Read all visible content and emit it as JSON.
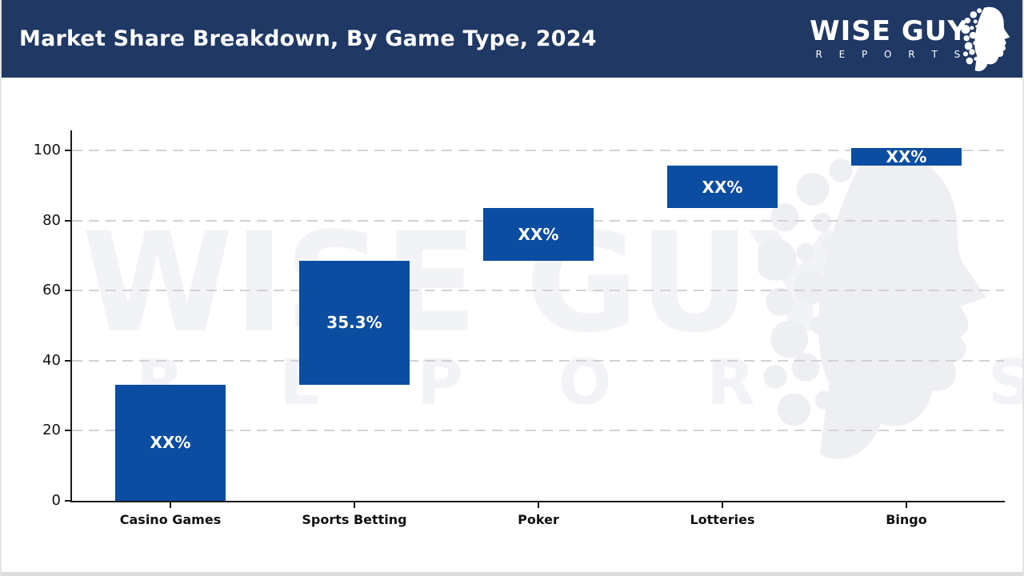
{
  "header": {
    "title": "Market Share Breakdown, By Game Type, 2024",
    "logo": {
      "line1": "WISE GUY",
      "line2": "R E P O R T S"
    }
  },
  "watermark": {
    "line1": "WISE GUY",
    "line2": "R E P O R T S"
  },
  "colors": {
    "header_bg": "#1f3864",
    "bar": "#0b4da1",
    "bar_label": "#ffffff",
    "grid": "#d2d2d2",
    "axis": "#1a1a1a",
    "tick_label": "#111111",
    "watermark": "#f2f3f6",
    "watermark_head": "#edeff3"
  },
  "chart_data": {
    "type": "bar",
    "subtype": "waterfall",
    "title": "Market Share Breakdown, By Game Type, 2024",
    "categories": [
      "Casino Games",
      "Sports Betting",
      "Poker",
      "Lotteries",
      "Bingo"
    ],
    "segments": [
      {
        "category": "Casino Games",
        "start": 0,
        "end": 33.2,
        "label": "XX%"
      },
      {
        "category": "Sports Betting",
        "start": 33.2,
        "end": 68.5,
        "label": "35.3%"
      },
      {
        "category": "Poker",
        "start": 68.5,
        "end": 83.5,
        "label": "XX%"
      },
      {
        "category": "Lotteries",
        "start": 83.5,
        "end": 95.6,
        "label": "XX%"
      },
      {
        "category": "Bingo",
        "start": 95.6,
        "end": 100.6,
        "label": "XX%"
      }
    ],
    "ylabel": "",
    "xlabel": "",
    "yticks": [
      0,
      20,
      40,
      60,
      80,
      100
    ],
    "ylim": [
      0,
      105.7
    ],
    "grid": "dashed-horizontal",
    "legend": "none"
  }
}
